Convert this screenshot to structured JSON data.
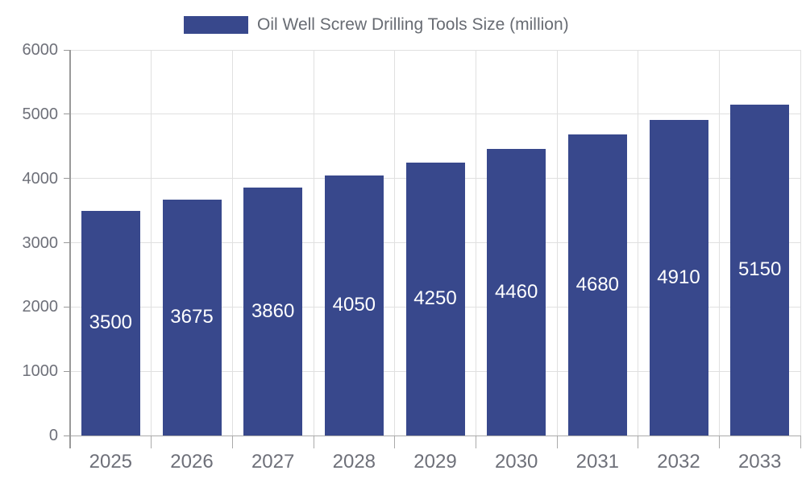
{
  "legend": {
    "label": "Oil Well Screw Drilling Tools Size (million)",
    "position": "top"
  },
  "chart_data": {
    "type": "bar",
    "title": "Oil Well Screw Drilling Tools Size (million)",
    "categories": [
      "2025",
      "2026",
      "2027",
      "2028",
      "2029",
      "2030",
      "2031",
      "2032",
      "2033"
    ],
    "values": [
      3500,
      3675,
      3860,
      4050,
      4250,
      4460,
      4680,
      4910,
      5150
    ],
    "xlabel": "",
    "ylabel": "",
    "ylim": [
      0,
      6000
    ],
    "yticks": [
      0,
      1000,
      2000,
      3000,
      4000,
      5000,
      6000
    ],
    "grid": true,
    "data_labels": true,
    "legend_position": "top",
    "colors": {
      "bar": "#38488C",
      "bar_label": "#FFFFFF",
      "axis_label": "#6E7079",
      "legend_text": "#686C73",
      "gridline": "#E0E0E0",
      "axis_line_y": "#999999",
      "axis_line_x": "#AAAAAA",
      "background": "#FFFFFF"
    }
  }
}
